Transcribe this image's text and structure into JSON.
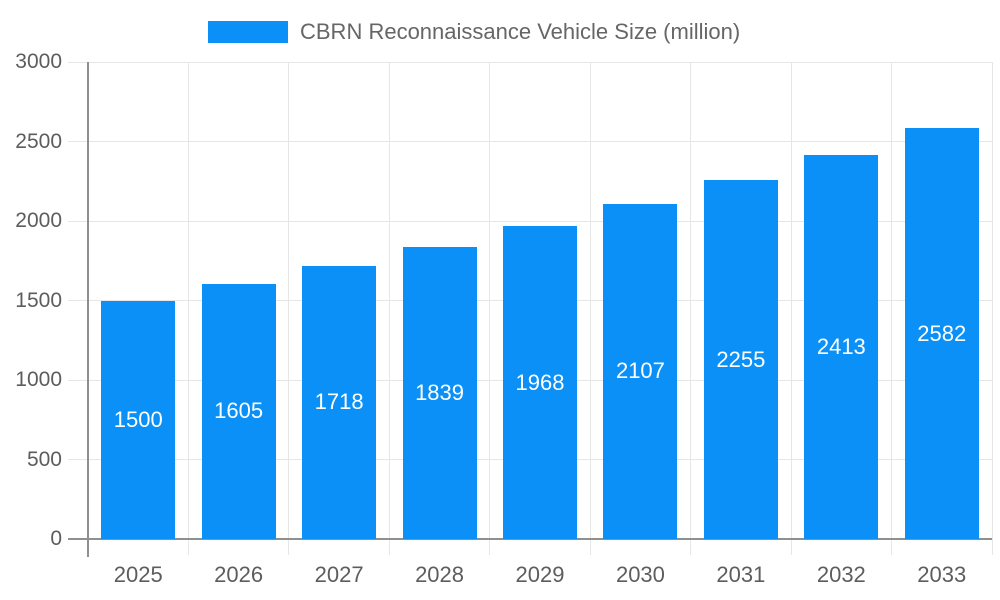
{
  "chart_data": {
    "type": "bar",
    "title": "",
    "legend_label": "CBRN Reconnaissance Vehicle Size (million)",
    "legend_position": "top-center",
    "categories": [
      "2025",
      "2026",
      "2027",
      "2028",
      "2029",
      "2030",
      "2031",
      "2032",
      "2033"
    ],
    "values": [
      1500,
      1605,
      1718,
      1839,
      1968,
      2107,
      2255,
      2413,
      2582
    ],
    "value_labels": [
      "1500",
      "1605",
      "1718",
      "1839",
      "1968",
      "2107",
      "2255",
      "2413",
      "2582"
    ],
    "xlabel": "",
    "ylabel": "",
    "ylim": [
      0,
      3000
    ],
    "yticks": [
      0,
      500,
      1000,
      1500,
      2000,
      2500,
      3000
    ],
    "grid": "on",
    "value_labels_placement": "centered-inside-bars",
    "colors": {
      "bar": "#0a90f6",
      "axis_line": "#8f8f8f",
      "gridline": "#e6e6e6",
      "tick_label_text": "#5d5d5d",
      "legend_text": "#666666",
      "bar_value_text": "#ffffff",
      "background": "#ffffff"
    }
  }
}
